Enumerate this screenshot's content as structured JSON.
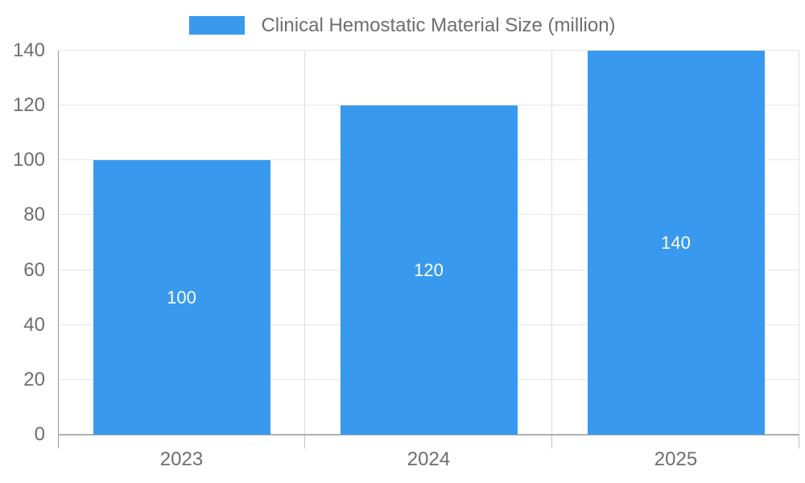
{
  "chart_data": {
    "type": "bar",
    "title": "Clinical Hemostatic Material Size (million)",
    "categories": [
      "2023",
      "2024",
      "2025"
    ],
    "values": [
      100,
      120,
      140
    ],
    "data_labels": [
      "100",
      "120",
      "140"
    ],
    "series": [
      {
        "name": "Clinical Hemostatic Material Size (million)",
        "values": [
          100,
          120,
          140
        ]
      }
    ],
    "xlabel": "",
    "ylabel": "",
    "ylim": [
      0,
      140
    ],
    "yticks": [
      0,
      20,
      40,
      60,
      80,
      100,
      120,
      140
    ],
    "grid": true,
    "legend_position": "top-center",
    "colors": {
      "bar": "#3899EE",
      "bar_label": "#FFFFFF",
      "axis_text": "#6E6E6E",
      "axis_line_y": "#999999",
      "axis_line_x": "#B0B0B0",
      "tick": "#C2C2C2",
      "gridline_h": "#E6E6E6",
      "gridline_v": "#DEDEDE",
      "background": "#FFFFFF"
    }
  }
}
